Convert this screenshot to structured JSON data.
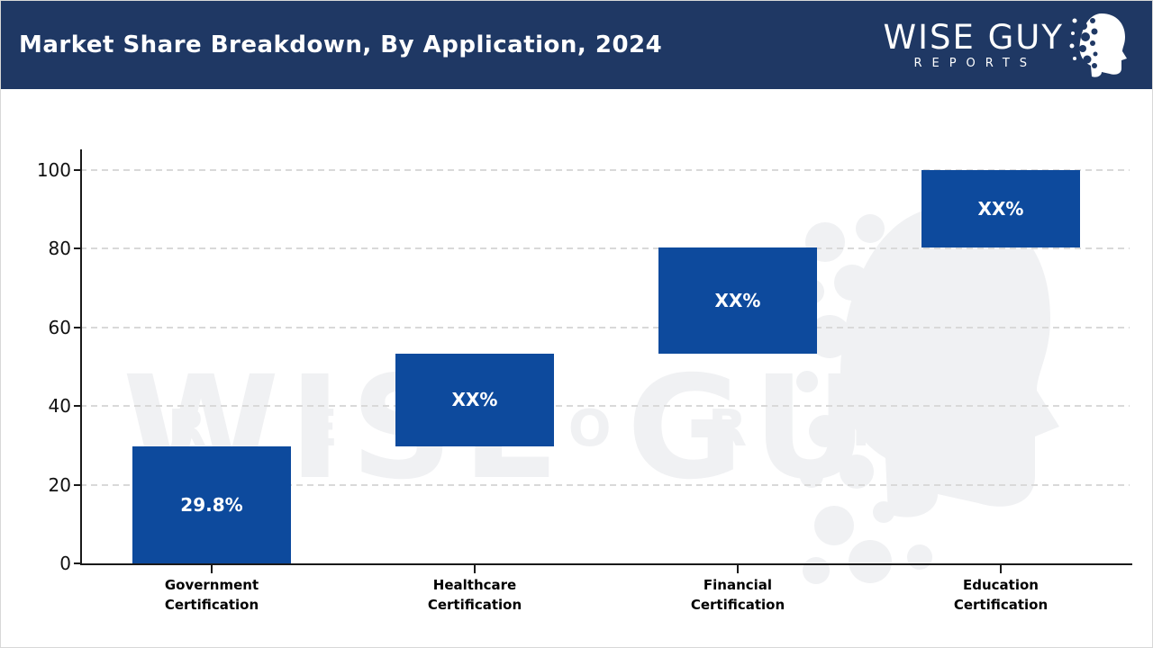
{
  "header": {
    "title": "Market Share Breakdown, By Application, 2024",
    "logo": {
      "line1": "WISE GUY",
      "line2": "REPORTS"
    }
  },
  "watermark": {
    "line1": "WISE GUY",
    "line2": "REPORTS"
  },
  "colors": {
    "header_bg": "#1f3864",
    "bar": "#0d4a9d",
    "grid": "#d9d9d9",
    "axis": "#1a1a1a",
    "bar_label": "#ffffff",
    "watermark": "#f0f1f3"
  },
  "chart_data": {
    "type": "bar",
    "subtype": "waterfall",
    "title": "Market Share Breakdown, By Application, 2024",
    "xlabel": "",
    "ylabel": "",
    "ylim": [
      0,
      105
    ],
    "yticks": [
      0,
      20,
      40,
      60,
      80,
      100
    ],
    "grid": "horizontal-dashed",
    "legend": "none",
    "categories": [
      "Government\nCertification",
      "Healthcare\nCertification",
      "Financial\nCertification",
      "Education\nCertification"
    ],
    "bars": [
      {
        "category": "Government\nCertification",
        "start": 0,
        "end": 29.8,
        "value": 29.8,
        "label": "29.8%"
      },
      {
        "category": "Healthcare\nCertification",
        "start": 29.8,
        "end": 53.3,
        "value": 23.5,
        "label": "XX%"
      },
      {
        "category": "Financial\nCertification",
        "start": 53.3,
        "end": 80.3,
        "value": 27.0,
        "label": "XX%"
      },
      {
        "category": "Education\nCertification",
        "start": 80.3,
        "end": 100,
        "value": 19.7,
        "label": "XX%"
      }
    ]
  }
}
